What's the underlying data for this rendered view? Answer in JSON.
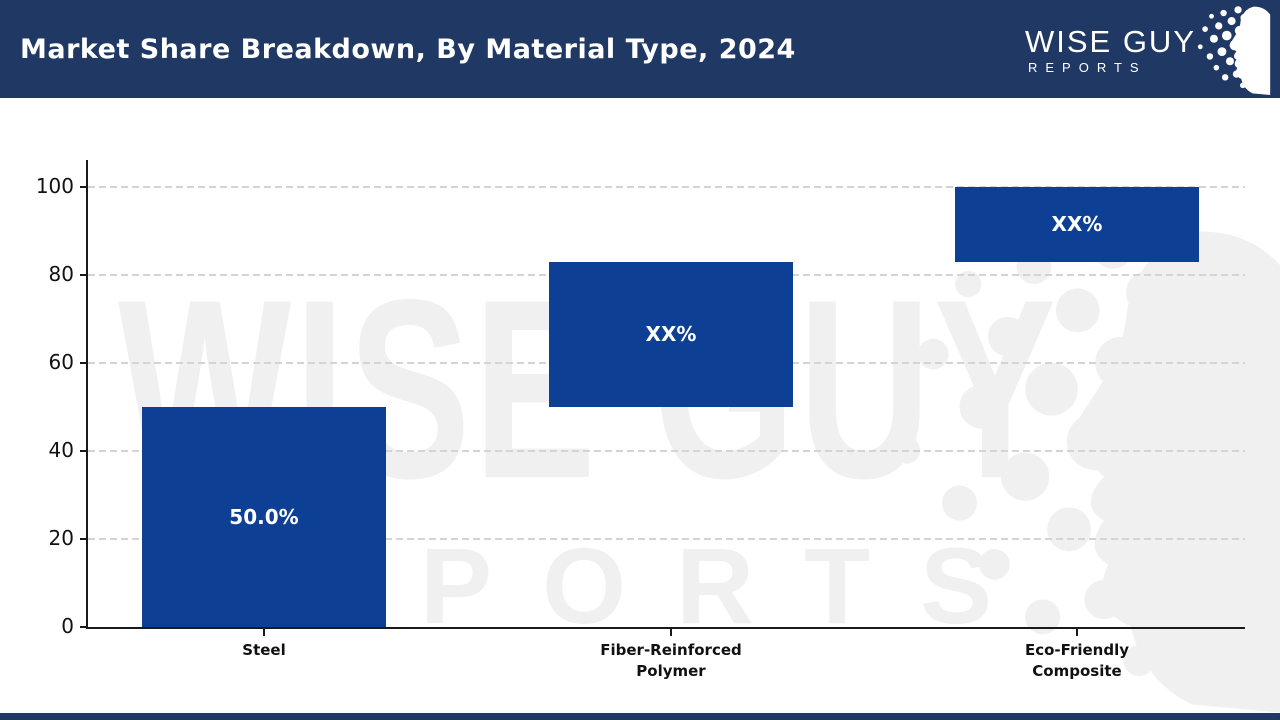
{
  "header": {
    "title": "Market Share Breakdown, By Material Type, 2024",
    "logo": {
      "wordmark": "WISE GUY",
      "reports": "REPORTS"
    }
  },
  "watermark": {
    "wordmark": "WISE GUY",
    "reports": "REPORTS"
  },
  "colors": {
    "navy": "#203864",
    "bar_blue": "#0d4094",
    "watermark_gray": "#f0f0f0",
    "axis": "#1a1a1a",
    "grid": "#d4d4d4",
    "tick_text": "#111111",
    "bar_label_text": "#ffffff"
  },
  "chart_data": {
    "type": "bar",
    "subtype": "stacked-waterfall",
    "title": "Market Share Breakdown, By Material Type, 2024",
    "categories": [
      "Steel",
      "Fiber-Reinforced Polymer",
      "Eco-Friendly Composite"
    ],
    "category_lines": [
      [
        "Steel"
      ],
      [
        "Fiber-Reinforced",
        "Polymer"
      ],
      [
        "Eco-Friendly",
        "Composite"
      ]
    ],
    "segments": [
      {
        "category": "Steel",
        "start": 0,
        "end": 50,
        "value": 50.0,
        "value_label": "50.0%"
      },
      {
        "category": "Fiber-Reinforced Polymer",
        "start": 50,
        "end": 83,
        "value": 33,
        "value_label": "XX%"
      },
      {
        "category": "Eco-Friendly Composite",
        "start": 83,
        "end": 100,
        "value": 17,
        "value_label": "XX%"
      }
    ],
    "xlabel": "",
    "ylabel": "",
    "ylim": [
      0,
      100
    ],
    "yticks": [
      0,
      20,
      40,
      60,
      80,
      100
    ],
    "grid": "horizontal dashed",
    "legend": "none",
    "bar_color": "#0d4094"
  }
}
